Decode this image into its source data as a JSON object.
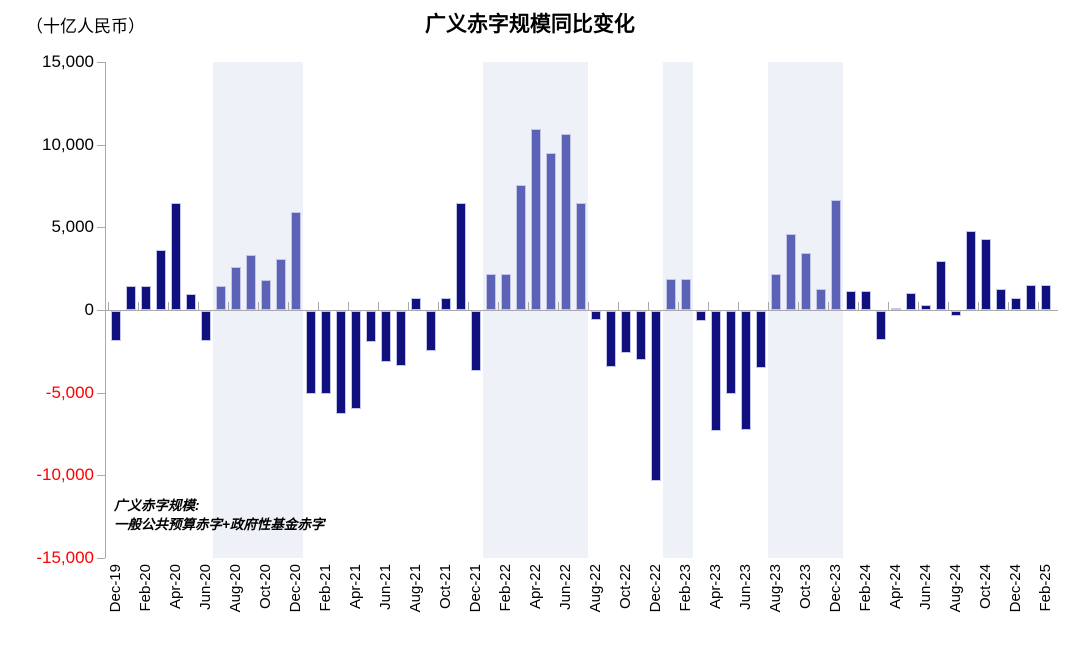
{
  "unit_label": "（十亿人民币）",
  "title": "广义赤字规模同比变化",
  "annotation": {
    "line1": "广义赤字规模:",
    "line2": "一般公共预算赤字+政府性基金赤字"
  },
  "chart_data": {
    "type": "bar",
    "title": "广义赤字规模同比变化",
    "unit": "十亿人民币",
    "ylim": [
      -15000,
      15000
    ],
    "grid": false,
    "legend": "none",
    "yticks": [
      {
        "value": 15000,
        "label": "15,000"
      },
      {
        "value": 10000,
        "label": "10,000"
      },
      {
        "value": 5000,
        "label": "5,000"
      },
      {
        "value": 0,
        "label": "0"
      },
      {
        "value": -5000,
        "label": "-5,000"
      },
      {
        "value": -10000,
        "label": "-10,000"
      },
      {
        "value": -15000,
        "label": "-15,000"
      }
    ],
    "categories": [
      "Dec-19",
      "Jan-20",
      "Feb-20",
      "Mar-20",
      "Apr-20",
      "May-20",
      "Jun-20",
      "Jul-20",
      "Aug-20",
      "Sep-20",
      "Oct-20",
      "Nov-20",
      "Dec-20",
      "Jan-21",
      "Feb-21",
      "Mar-21",
      "Apr-21",
      "May-21",
      "Jun-21",
      "Jul-21",
      "Aug-21",
      "Sep-21",
      "Oct-21",
      "Nov-21",
      "Dec-21",
      "Jan-22",
      "Feb-22",
      "Mar-22",
      "Apr-22",
      "May-22",
      "Jun-22",
      "Jul-22",
      "Aug-22",
      "Sep-22",
      "Oct-22",
      "Nov-22",
      "Dec-22",
      "Jan-23",
      "Feb-23",
      "Mar-23",
      "Apr-23",
      "May-23",
      "Jun-23",
      "Jul-23",
      "Aug-23",
      "Sep-23",
      "Oct-23",
      "Nov-23",
      "Dec-23",
      "Jan-24",
      "Feb-24",
      "Mar-24",
      "Apr-24",
      "May-24",
      "Jun-24",
      "Jul-24",
      "Aug-24",
      "Sep-24",
      "Oct-24",
      "Nov-24",
      "Dec-24",
      "Jan-25",
      "Feb-25"
    ],
    "values": [
      -1800,
      1450,
      1450,
      3600,
      6500,
      950,
      -1800,
      1450,
      2600,
      3350,
      1800,
      3100,
      5950,
      -5000,
      -5000,
      -6250,
      -5950,
      -1900,
      -3100,
      -3300,
      700,
      -2400,
      700,
      6450,
      -3650,
      2200,
      2200,
      7550,
      10950,
      9500,
      10650,
      6450,
      -550,
      -3400,
      -2550,
      -2950,
      -10300,
      1900,
      1900,
      -600,
      -7250,
      -5000,
      -7200,
      -3450,
      2200,
      4600,
      3450,
      1300,
      6650,
      1150,
      1150,
      -1750,
      150,
      1000,
      300,
      2950,
      -300,
      4750,
      4300,
      1250,
      700,
      1500,
      1500
    ],
    "xtick_labels": [
      "Dec-19",
      "Feb-20",
      "Apr-20",
      "Jun-20",
      "Aug-20",
      "Oct-20",
      "Dec-20",
      "Feb-21",
      "Apr-21",
      "Jun-21",
      "Aug-21",
      "Oct-21",
      "Dec-21",
      "Feb-22",
      "Apr-22",
      "Jun-22",
      "Aug-22",
      "Oct-22",
      "Dec-22",
      "Feb-23",
      "Apr-23",
      "Jun-23",
      "Aug-23",
      "Oct-23",
      "Dec-23",
      "Feb-24",
      "Apr-24",
      "Jun-24",
      "Aug-24",
      "Oct-24",
      "Dec-24",
      "Feb-25"
    ],
    "highlight_periods": [
      {
        "from": "Jul-20",
        "to": "Dec-20"
      },
      {
        "from": "Jan-22",
        "to": "Jul-22"
      },
      {
        "from": "Jan-23",
        "to": "Feb-23"
      },
      {
        "from": "Aug-23",
        "to": "Dec-23"
      }
    ],
    "colors": {
      "bar_dark": "#10107F",
      "bar_light": "#5C62B5",
      "bar_edge": "#C3C6E6",
      "highlight_band": "#EEF1F8",
      "axis": "#A9A9A9",
      "tick_label_positive": "#000000",
      "tick_label_negative": "#FF0000",
      "title": "#000000"
    }
  }
}
